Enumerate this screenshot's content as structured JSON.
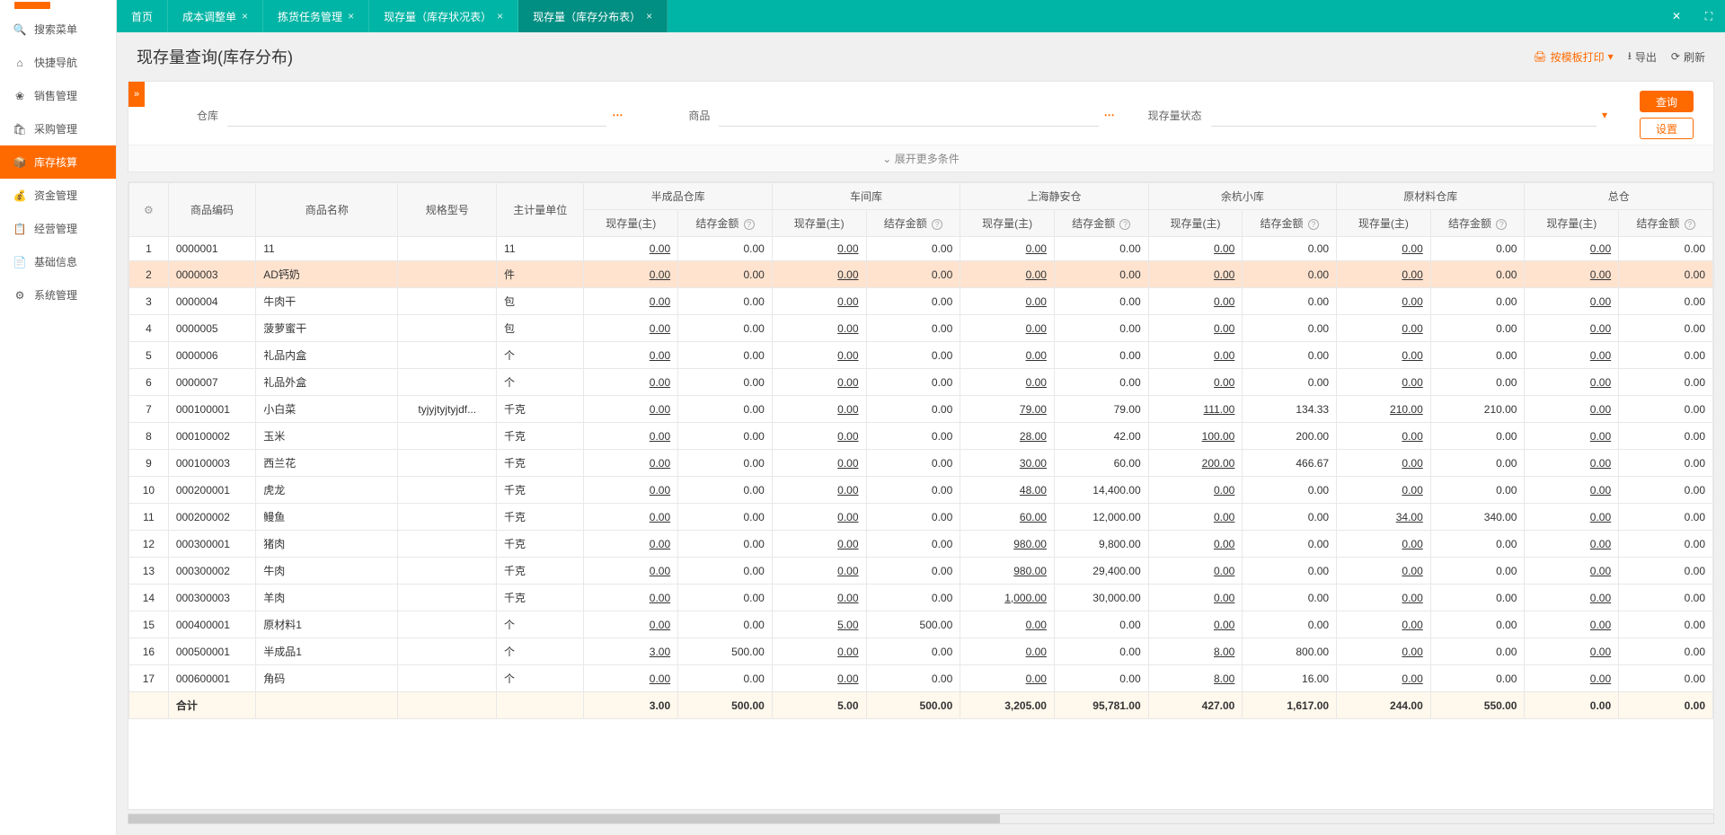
{
  "sidebar": {
    "items": [
      {
        "label": "搜索菜单",
        "name": "search-menu"
      },
      {
        "label": "快捷导航",
        "name": "quick-nav"
      },
      {
        "label": "销售管理",
        "name": "sales-mgmt"
      },
      {
        "label": "采购管理",
        "name": "purchase-mgmt"
      },
      {
        "label": "库存核算",
        "name": "inventory-acct",
        "active": true
      },
      {
        "label": "资金管理",
        "name": "funds-mgmt"
      },
      {
        "label": "经营管理",
        "name": "ops-mgmt"
      },
      {
        "label": "基础信息",
        "name": "basic-info"
      },
      {
        "label": "系统管理",
        "name": "system-mgmt"
      }
    ]
  },
  "tabs": [
    {
      "label": "首页",
      "closable": false
    },
    {
      "label": "成本调整单",
      "closable": true
    },
    {
      "label": "拣货任务管理",
      "closable": true
    },
    {
      "label": "现存量（库存状况表）",
      "closable": true
    },
    {
      "label": "现存量（库存分布表）",
      "closable": true,
      "active": true
    }
  ],
  "page": {
    "title": "现存量查询(库存分布)",
    "print_label": "按模板打印",
    "export_label": "导出",
    "refresh_label": "刷新"
  },
  "filter": {
    "warehouse_label": "仓库",
    "product_label": "商品",
    "status_label": "现存量状态",
    "query_btn": "查询",
    "settings_btn": "设置",
    "expand_label": "展开更多条件"
  },
  "table": {
    "col_index": "",
    "col_code": "商品编码",
    "col_name": "商品名称",
    "col_spec": "规格型号",
    "col_unit": "主计量单位",
    "groups": [
      "半成品仓库",
      "车间库",
      "上海静安仓",
      "余杭小库",
      "原材料仓库",
      "总仓"
    ],
    "sub_qty": "现存量(主)",
    "sub_amt": "结存金额",
    "rows": [
      {
        "n": 1,
        "code": "0000001",
        "name": "11",
        "spec": "",
        "unit": "11",
        "v": [
          "0.00",
          "0.00",
          "0.00",
          "0.00",
          "0.00",
          "0.00",
          "0.00",
          "0.00",
          "0.00",
          "0.00",
          "0.00",
          "0.00"
        ]
      },
      {
        "n": 2,
        "code": "0000003",
        "name": "AD钙奶",
        "spec": "",
        "unit": "件",
        "hl": true,
        "v": [
          "0.00",
          "0.00",
          "0.00",
          "0.00",
          "0.00",
          "0.00",
          "0.00",
          "0.00",
          "0.00",
          "0.00",
          "0.00",
          "0.00"
        ]
      },
      {
        "n": 3,
        "code": "0000004",
        "name": "牛肉干",
        "spec": "",
        "unit": "包",
        "v": [
          "0.00",
          "0.00",
          "0.00",
          "0.00",
          "0.00",
          "0.00",
          "0.00",
          "0.00",
          "0.00",
          "0.00",
          "0.00",
          "0.00"
        ]
      },
      {
        "n": 4,
        "code": "0000005",
        "name": "菠萝蜜干",
        "spec": "",
        "unit": "包",
        "v": [
          "0.00",
          "0.00",
          "0.00",
          "0.00",
          "0.00",
          "0.00",
          "0.00",
          "0.00",
          "0.00",
          "0.00",
          "0.00",
          "0.00"
        ]
      },
      {
        "n": 5,
        "code": "0000006",
        "name": "礼品内盒",
        "spec": "",
        "unit": "个",
        "v": [
          "0.00",
          "0.00",
          "0.00",
          "0.00",
          "0.00",
          "0.00",
          "0.00",
          "0.00",
          "0.00",
          "0.00",
          "0.00",
          "0.00"
        ]
      },
      {
        "n": 6,
        "code": "0000007",
        "name": "礼品外盒",
        "spec": "",
        "unit": "个",
        "v": [
          "0.00",
          "0.00",
          "0.00",
          "0.00",
          "0.00",
          "0.00",
          "0.00",
          "0.00",
          "0.00",
          "0.00",
          "0.00",
          "0.00"
        ]
      },
      {
        "n": 7,
        "code": "000100001",
        "name": "小白菜",
        "spec": "tyjyjtyjtyjdf...",
        "unit": "千克",
        "v": [
          "0.00",
          "0.00",
          "0.00",
          "0.00",
          "79.00",
          "79.00",
          "111.00",
          "134.33",
          "210.00",
          "210.00",
          "0.00",
          "0.00"
        ]
      },
      {
        "n": 8,
        "code": "000100002",
        "name": "玉米",
        "spec": "",
        "unit": "千克",
        "v": [
          "0.00",
          "0.00",
          "0.00",
          "0.00",
          "28.00",
          "42.00",
          "100.00",
          "200.00",
          "0.00",
          "0.00",
          "0.00",
          "0.00"
        ]
      },
      {
        "n": 9,
        "code": "000100003",
        "name": "西兰花",
        "spec": "",
        "unit": "千克",
        "v": [
          "0.00",
          "0.00",
          "0.00",
          "0.00",
          "30.00",
          "60.00",
          "200.00",
          "466.67",
          "0.00",
          "0.00",
          "0.00",
          "0.00"
        ]
      },
      {
        "n": 10,
        "code": "000200001",
        "name": "虎龙",
        "spec": "",
        "unit": "千克",
        "v": [
          "0.00",
          "0.00",
          "0.00",
          "0.00",
          "48.00",
          "14,400.00",
          "0.00",
          "0.00",
          "0.00",
          "0.00",
          "0.00",
          "0.00"
        ]
      },
      {
        "n": 11,
        "code": "000200002",
        "name": "鳗鱼",
        "spec": "",
        "unit": "千克",
        "v": [
          "0.00",
          "0.00",
          "0.00",
          "0.00",
          "60.00",
          "12,000.00",
          "0.00",
          "0.00",
          "34.00",
          "340.00",
          "0.00",
          "0.00"
        ]
      },
      {
        "n": 12,
        "code": "000300001",
        "name": "猪肉",
        "spec": "",
        "unit": "千克",
        "v": [
          "0.00",
          "0.00",
          "0.00",
          "0.00",
          "980.00",
          "9,800.00",
          "0.00",
          "0.00",
          "0.00",
          "0.00",
          "0.00",
          "0.00"
        ]
      },
      {
        "n": 13,
        "code": "000300002",
        "name": "牛肉",
        "spec": "",
        "unit": "千克",
        "v": [
          "0.00",
          "0.00",
          "0.00",
          "0.00",
          "980.00",
          "29,400.00",
          "0.00",
          "0.00",
          "0.00",
          "0.00",
          "0.00",
          "0.00"
        ]
      },
      {
        "n": 14,
        "code": "000300003",
        "name": "羊肉",
        "spec": "",
        "unit": "千克",
        "v": [
          "0.00",
          "0.00",
          "0.00",
          "0.00",
          "1,000.00",
          "30,000.00",
          "0.00",
          "0.00",
          "0.00",
          "0.00",
          "0.00",
          "0.00"
        ]
      },
      {
        "n": 15,
        "code": "000400001",
        "name": "原材料1",
        "spec": "",
        "unit": "个",
        "v": [
          "0.00",
          "0.00",
          "5.00",
          "500.00",
          "0.00",
          "0.00",
          "0.00",
          "0.00",
          "0.00",
          "0.00",
          "0.00",
          "0.00"
        ]
      },
      {
        "n": 16,
        "code": "000500001",
        "name": "半成品1",
        "spec": "",
        "unit": "个",
        "v": [
          "3.00",
          "500.00",
          "0.00",
          "0.00",
          "0.00",
          "0.00",
          "8.00",
          "800.00",
          "0.00",
          "0.00",
          "0.00",
          "0.00"
        ]
      },
      {
        "n": 17,
        "code": "000600001",
        "name": "角码",
        "spec": "",
        "unit": "个",
        "v": [
          "0.00",
          "0.00",
          "0.00",
          "0.00",
          "0.00",
          "0.00",
          "8.00",
          "16.00",
          "0.00",
          "0.00",
          "0.00",
          "0.00"
        ]
      }
    ],
    "total_label": "合计",
    "totals": [
      "3.00",
      "500.00",
      "5.00",
      "500.00",
      "3,205.00",
      "95,781.00",
      "427.00",
      "1,617.00",
      "244.00",
      "550.00",
      "0.00",
      "0.00"
    ]
  }
}
